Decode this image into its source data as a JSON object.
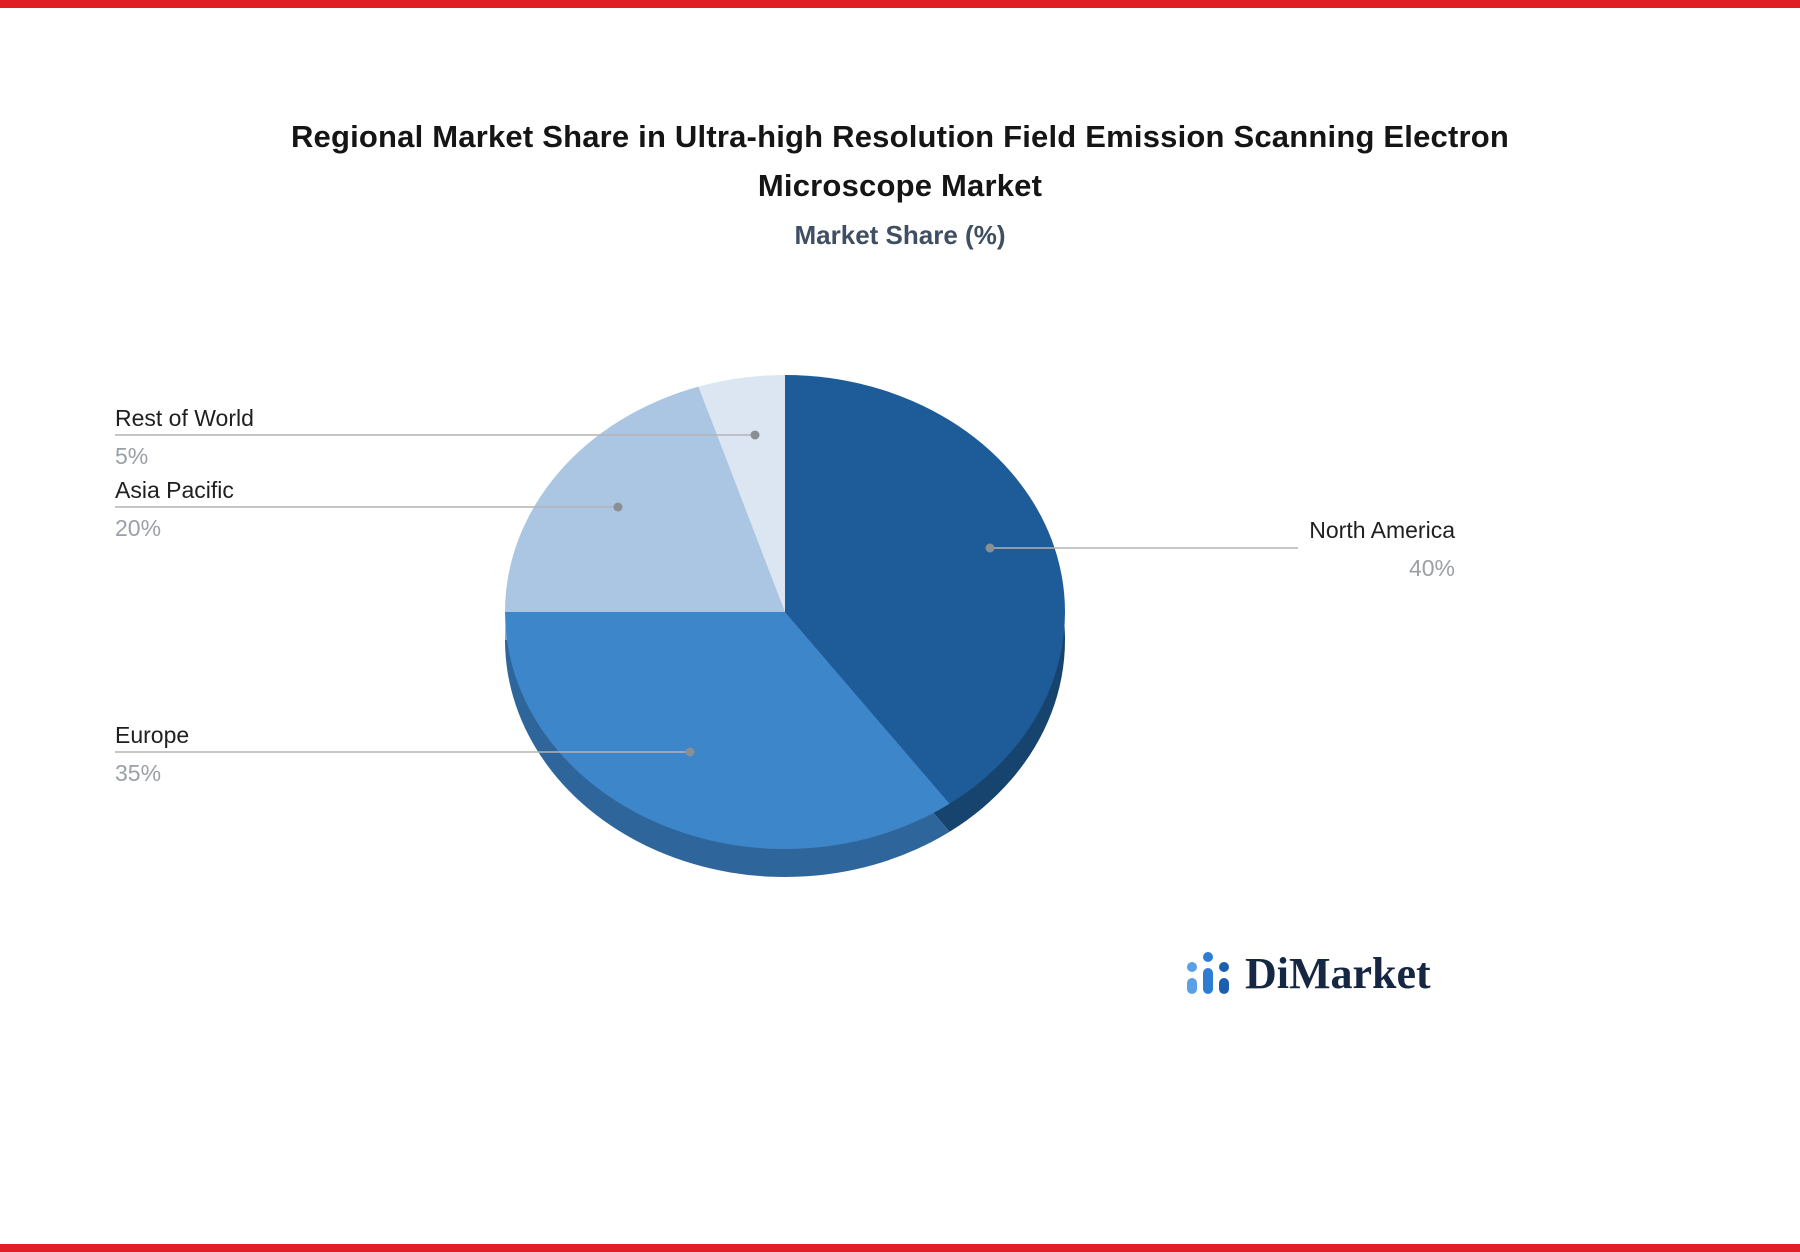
{
  "page": {
    "title_line1": "Regional Market Share in Ultra-high Resolution Field Emission Scanning Electron",
    "title_line2": "Microscope Market",
    "subtitle": "Market Share (%)",
    "border_color": "#e01e25",
    "background": "#ffffff"
  },
  "chart_data": {
    "type": "pie",
    "title": "Regional Market Share in Ultra-high Resolution Field Emission Scanning Electron Microscope Market",
    "subtitle": "Market Share (%)",
    "unit": "%",
    "labels": [
      "North America",
      "Europe",
      "Asia Pacific",
      "Rest of World"
    ],
    "values": [
      40,
      35,
      20,
      5
    ],
    "value_labels": [
      "40%",
      "35%",
      "20%",
      "5%"
    ],
    "colors": [
      "#1e5b99",
      "#3e86ca",
      "#aac6e2",
      "#dce6f2"
    ],
    "depth_colors": [
      "#16446f",
      "#2e669c",
      "#87a8c9",
      "#b9c9dd"
    ],
    "start_angle_deg": 0,
    "direction": "clockwise",
    "style": "3d",
    "legend_position": "callouts",
    "callout_line_color": "#b3b3b3",
    "callout_dot_color": "#8a8f94"
  },
  "logo": {
    "text": "DiMarket",
    "icon": "bar-chart-icon",
    "text_color": "#152742",
    "icon_colors": [
      "#5aa0e6",
      "#2d7dd2",
      "#1b5fae"
    ]
  }
}
